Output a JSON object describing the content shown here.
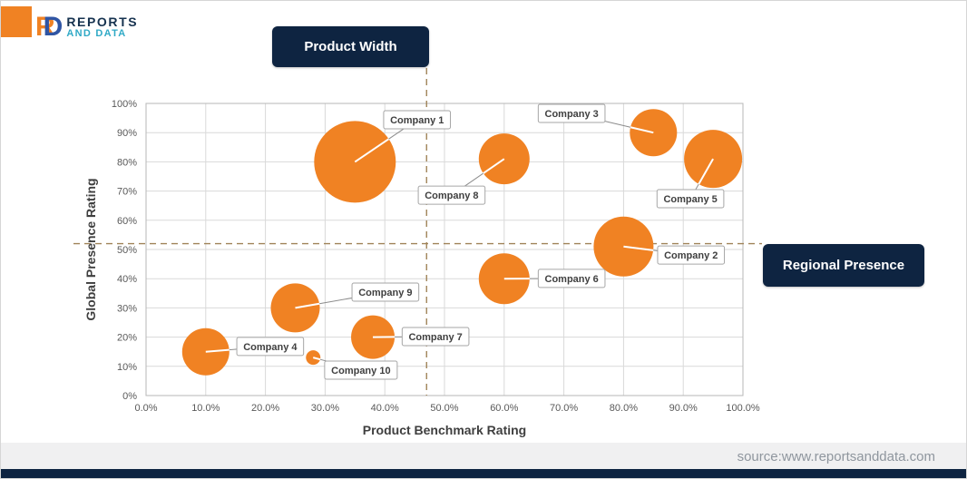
{
  "brand": {
    "mark_r": "R",
    "mark_d": "D",
    "name_line1": "REPORTS",
    "name_line2": "AND DATA"
  },
  "badges": {
    "product_width": "Product Width",
    "regional_presence": "Regional Presence"
  },
  "source": "source:www.reportsanddata.com",
  "colors": {
    "orange": "#F08223",
    "navy": "#0E2441",
    "teal": "#2FA9C6",
    "crosshair": "#A08358",
    "grid": "#d9d9d9",
    "tick_text": "#595959",
    "axis_title_text": "#3f3f3f",
    "leader_line": "#8c8c8c",
    "label_border": "#a6a6a6",
    "label_text": "#3f3f3f"
  },
  "chart_data": {
    "type": "scatter",
    "subtype": "bubble",
    "title": "",
    "xlabel": "Product Benchmark Rating",
    "ylabel": "Global Presence Rating",
    "xlim": [
      0,
      100
    ],
    "ylim": [
      0,
      100
    ],
    "grid": true,
    "legend": "none",
    "bubble_color": "#F08223",
    "x_tick_labels": [
      "0.0%",
      "10.0%",
      "20.0%",
      "30.0%",
      "40.0%",
      "50.0%",
      "60.0%",
      "70.0%",
      "80.0%",
      "90.0%",
      "100.0%"
    ],
    "y_tick_labels": [
      "0%",
      "10%",
      "20%",
      "30%",
      "40%",
      "50%",
      "60%",
      "70%",
      "80%",
      "90%",
      "100%"
    ],
    "crosshair": {
      "x": 47,
      "y": 52,
      "style": "dashed"
    },
    "points": [
      {
        "name": "Company 1",
        "x": 35,
        "y": 80,
        "r": 45,
        "label_x": 45.4,
        "label_y": 94.4
      },
      {
        "name": "Company 8",
        "x": 60,
        "y": 81,
        "r": 28,
        "label_x": 51.2,
        "label_y": 68.6
      },
      {
        "name": "Company 3",
        "x": 85,
        "y": 90,
        "r": 26,
        "label_x": 71.3,
        "label_y": 96.6
      },
      {
        "name": "Company 5",
        "x": 95,
        "y": 81,
        "r": 32,
        "label_x": 91.2,
        "label_y": 67.4
      },
      {
        "name": "Company 2",
        "x": 80,
        "y": 51,
        "r": 33,
        "label_x": 91.3,
        "label_y": 48.1
      },
      {
        "name": "Company 6",
        "x": 60,
        "y": 40,
        "r": 28,
        "label_x": 71.3,
        "label_y": 40.1
      },
      {
        "name": "Company 9",
        "x": 25,
        "y": 30,
        "r": 27,
        "label_x": 40.1,
        "label_y": 35.4
      },
      {
        "name": "Company 7",
        "x": 38,
        "y": 20,
        "r": 24,
        "label_x": 48.5,
        "label_y": 20.2
      },
      {
        "name": "Company 4",
        "x": 10,
        "y": 15,
        "r": 26,
        "label_x": 20.8,
        "label_y": 16.8
      },
      {
        "name": "Company 10",
        "x": 28,
        "y": 13,
        "r": 8,
        "label_x": 36.0,
        "label_y": 8.7
      }
    ]
  }
}
